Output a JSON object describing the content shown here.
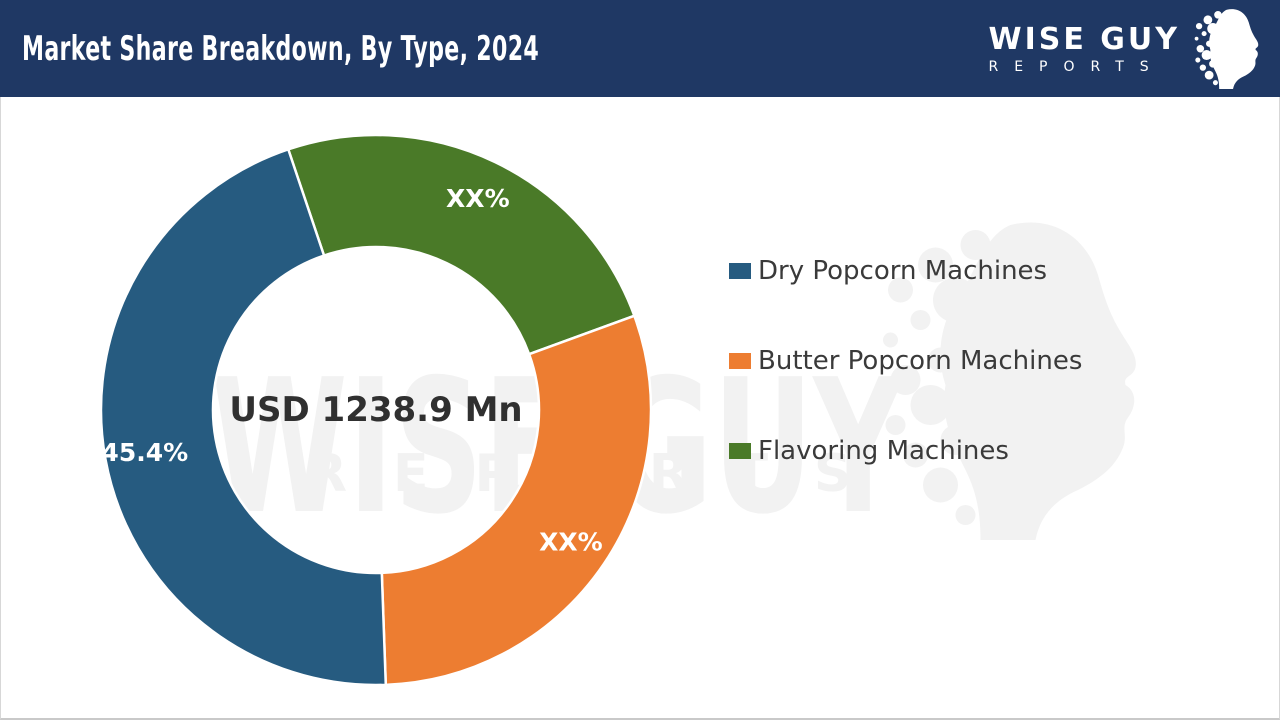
{
  "header": {
    "title": "Market Share Breakdown, By Type, 2024",
    "logo": {
      "name": "WISE GUY",
      "subtitle": "REPORTS"
    }
  },
  "watermark": {
    "word": "WISE GUY",
    "subword": "REPORTS"
  },
  "chart_data": {
    "type": "donut",
    "center_label": "USD 1238.9 Mn",
    "start_angle_deg": -18.6,
    "direction": "clockwise",
    "outer_radius_px": 275,
    "inner_radius_px": 163,
    "label_radius_px": 235,
    "segments": [
      {
        "label": "Flavoring Machines",
        "value_pct": 24.6,
        "value_label": "XX%",
        "color": "#4A7A28"
      },
      {
        "label": "Butter Popcorn Machines",
        "value_pct": 30.0,
        "value_label": "XX%",
        "color": "#ED7D31"
      },
      {
        "label": "Dry Popcorn Machines",
        "value_pct": 45.4,
        "value_label": "45.4%",
        "color": "#265B80"
      }
    ]
  },
  "legend": {
    "items": [
      {
        "label": "Dry Popcorn Machines",
        "color": "#265B80"
      },
      {
        "label": "Butter Popcorn Machines",
        "color": "#ED7D31"
      },
      {
        "label": "Flavoring Machines",
        "color": "#4A7A28"
      }
    ]
  },
  "colors": {
    "header_bg": "#1F3864",
    "content_bg": "#FFFFFF",
    "watermark": "#F2F2F2",
    "center_text": "#303030",
    "legend_text": "#3A3A3A"
  }
}
